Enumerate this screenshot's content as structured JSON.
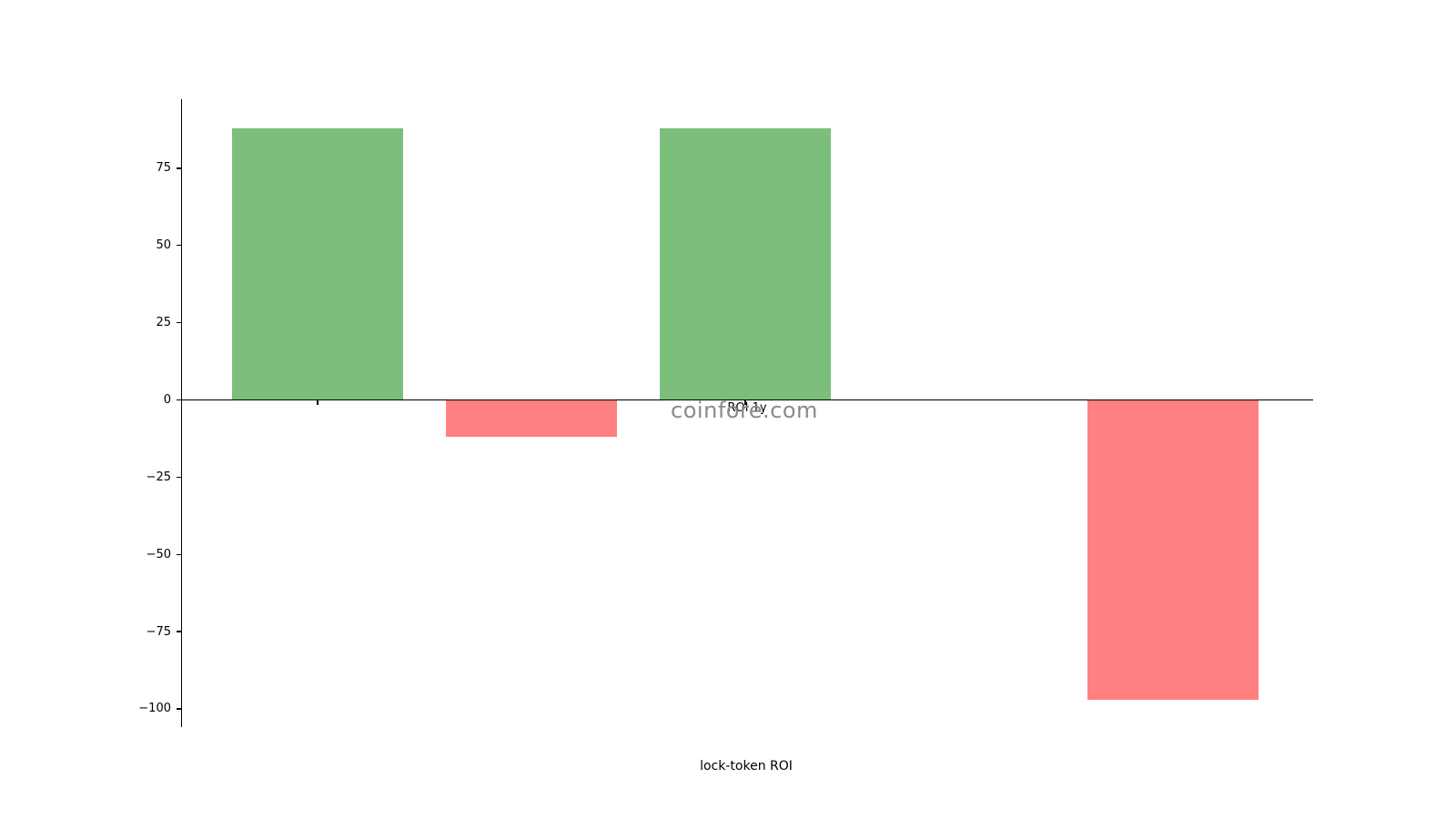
{
  "watermark": {
    "text": "coinfore.com",
    "color": "#8a8a8a"
  },
  "chart_data": {
    "type": "bar",
    "title": "",
    "xlabel": "lock-token ROI",
    "ylabel": "",
    "bars": [
      {
        "position": 1,
        "tick_label": "",
        "value": 88,
        "show_tick": true
      },
      {
        "position": 2,
        "tick_label": "",
        "value": -12,
        "show_tick": false
      },
      {
        "position": 3,
        "tick_label": "ROI 1y",
        "value": 88,
        "show_tick": true
      },
      {
        "position": 5,
        "tick_label": "",
        "value": -97,
        "show_tick": false
      }
    ],
    "y_ticks": [
      75,
      50,
      25,
      0,
      -25,
      -50,
      -75,
      -100
    ],
    "ylim": [
      -105.8,
      97.4
    ],
    "grid": false,
    "legend": false,
    "colors": {
      "positive": "#7cbe7c",
      "negative": "#ff8080",
      "axis": "#000000",
      "tick_text": "#000000"
    }
  }
}
